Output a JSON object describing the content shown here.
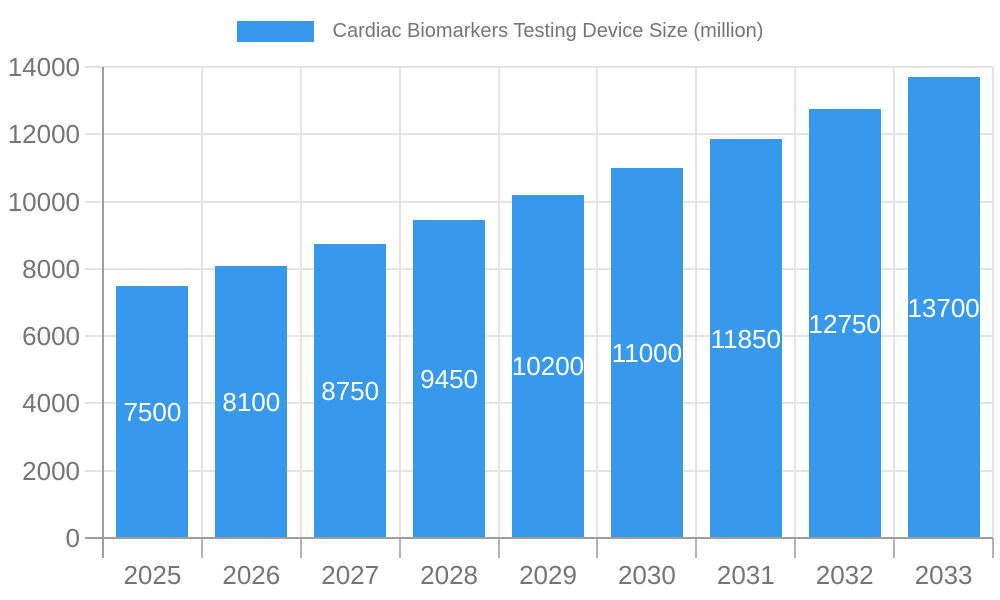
{
  "legend": {
    "label": "Cardiac Biomarkers Testing Device Size (million)"
  },
  "chart_data": {
    "type": "bar",
    "title": "Cardiac Biomarkers Testing Device Size (million)",
    "categories": [
      "2025",
      "2026",
      "2027",
      "2028",
      "2029",
      "2030",
      "2031",
      "2032",
      "2033"
    ],
    "values": [
      7500,
      8100,
      8750,
      9450,
      10200,
      11000,
      11850,
      12750,
      13700
    ],
    "value_labels": [
      "7500",
      "8100",
      "8750",
      "9450",
      "10200",
      "11000",
      "11850",
      "12750",
      "13700"
    ],
    "xlabel": "",
    "ylabel": "",
    "ylim": [
      0,
      14000
    ],
    "yticks": [
      0,
      2000,
      4000,
      6000,
      8000,
      10000,
      12000,
      14000
    ],
    "grid": true,
    "legend_position": "top-center",
    "bar_color": "#3899EC",
    "value_label_color": "#FFFFFF",
    "tick_label_color": "#757575",
    "grid_color": "#E4E4E4",
    "axis_color": "#9E9E9E",
    "background_color": "#FFFFFF"
  }
}
